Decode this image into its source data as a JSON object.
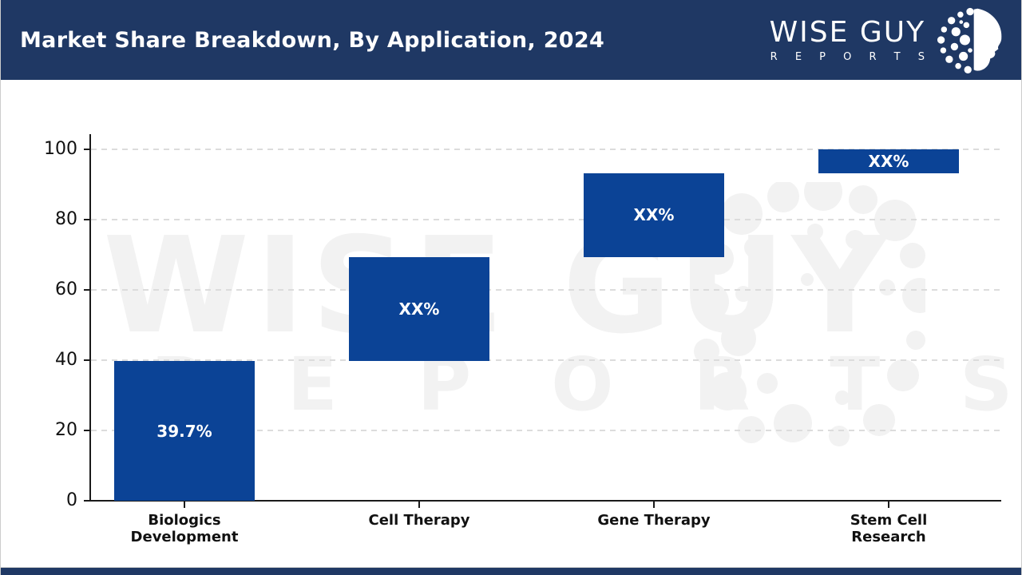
{
  "header": {
    "title": "Market Share Breakdown, By Application, 2024",
    "logo": {
      "wordmark": "WISE GUY",
      "subtext": "R E P O R T S"
    }
  },
  "watermark": {
    "line1": "WISE GUY",
    "line2": "R E P O R T S"
  },
  "colors": {
    "header_bg": "#1F3864",
    "bar": "#0B4396",
    "grid": "#DCDCDC",
    "axis": "#1A1A1A",
    "watermark": "#F2F2F2",
    "bar_label": "#FFFFFF"
  },
  "chart_data": {
    "type": "bar",
    "subtype": "waterfall",
    "title": "Market Share Breakdown, By Application, 2024",
    "categories": [
      "Biologics Development",
      "Cell Therapy",
      "Gene Therapy",
      "Stem Cell Research"
    ],
    "segments": [
      {
        "category": "Biologics Development",
        "start": 0,
        "end": 39.7,
        "label": "39.7%"
      },
      {
        "category": "Cell Therapy",
        "start": 39.7,
        "end": 69.3,
        "label": "XX%"
      },
      {
        "category": "Gene Therapy",
        "start": 69.3,
        "end": 93.2,
        "label": "XX%"
      },
      {
        "category": "Stem Cell Research",
        "start": 93.2,
        "end": 100,
        "label": "XX%"
      }
    ],
    "xlabel": "",
    "ylabel": "",
    "ylim": [
      0,
      105
    ],
    "yticks": [
      0,
      20,
      40,
      60,
      80,
      100
    ],
    "grid": "horizontal-dashed",
    "legend": "none"
  }
}
